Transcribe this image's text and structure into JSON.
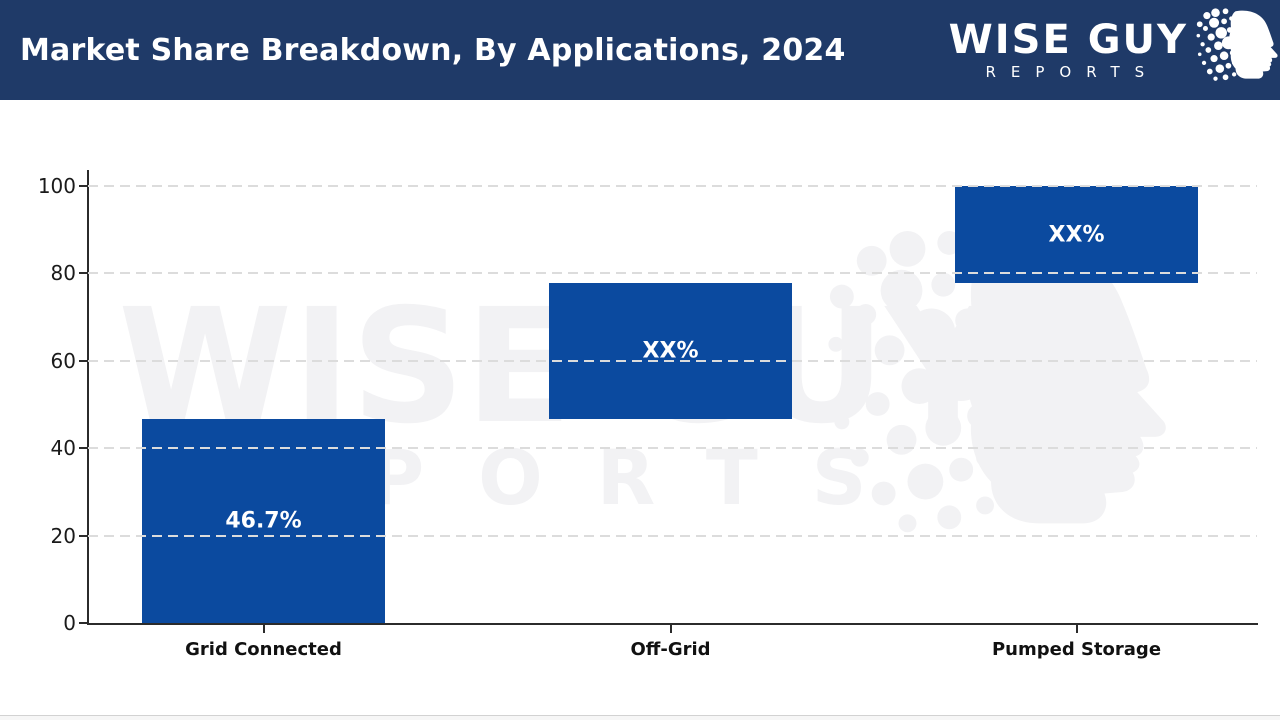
{
  "header": {
    "title": "Market Share Breakdown, By Applications, 2024",
    "bg_color": "#1f3a68",
    "logo": {
      "line1": "WISE GUY",
      "line2": "REPORTS"
    }
  },
  "watermark": {
    "line1": "WISE GUY",
    "line2": "REPORTS"
  },
  "chart_data": {
    "type": "bar",
    "subtype": "waterfall",
    "title": "Market Share Breakdown, By Applications, 2024",
    "categories": [
      "Grid Connected",
      "Off-Grid",
      "Pumped Storage"
    ],
    "segments": [
      {
        "category": "Grid Connected",
        "start": 0,
        "end": 46.7,
        "label": "46.7%"
      },
      {
        "category": "Off-Grid",
        "start": 46.7,
        "end": 77.8,
        "label": "XX%"
      },
      {
        "category": "Pumped Storage",
        "start": 77.8,
        "end": 100,
        "label": "XX%"
      }
    ],
    "xlabel": "",
    "ylabel": "",
    "ylim": [
      0,
      100
    ],
    "yticks": [
      0,
      20,
      40,
      60,
      80,
      100
    ],
    "grid": "dashed-horizontal",
    "legend": "none",
    "bar_color": "#0b4a9f",
    "bar_label_color": "#ffffff",
    "grid_color": "#dcdcdc",
    "axis_color": "#2b2b2b"
  }
}
